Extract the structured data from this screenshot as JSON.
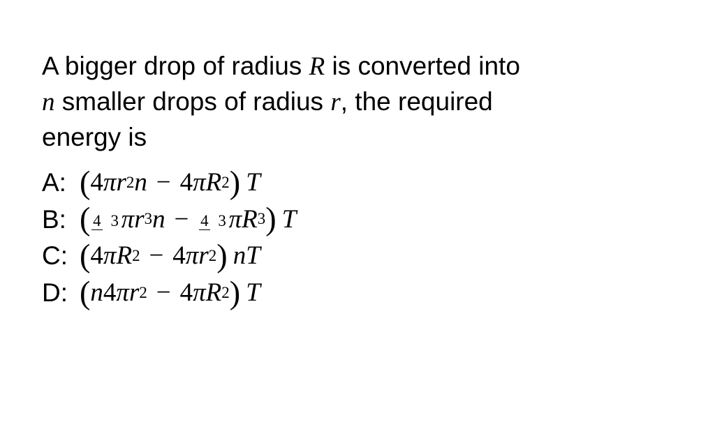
{
  "question": {
    "line1_pre": "A bigger drop of radius ",
    "line1_var": "R",
    "line1_post": " is converted into",
    "line2_var": "n",
    "line2_mid": " smaller drops of radius ",
    "line2_var2": "r",
    "line2_post": ", the required",
    "line3": "energy is"
  },
  "options": {
    "A": {
      "label": "A:"
    },
    "B": {
      "label": "B:"
    },
    "C": {
      "label": "C:"
    },
    "D": {
      "label": "D:"
    }
  },
  "sym": {
    "pi": "π",
    "r": "r",
    "R": "R",
    "n": "n",
    "T": "T",
    "four": "4",
    "two": "2",
    "three": "3",
    "minus": "−",
    "lp": "(",
    "rp": ")"
  },
  "frac": {
    "num": "4",
    "den": "3"
  }
}
